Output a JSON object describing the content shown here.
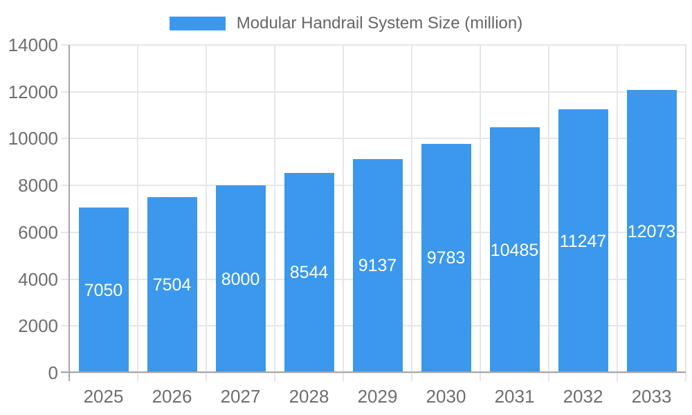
{
  "colors": {
    "background": "#FFFFFF",
    "bar": "#3B98EC",
    "bar_label": "#FFFFFF",
    "grid": "#E6E6E6",
    "axis_border": "#A6A6A6",
    "axis_text": "#6E6E6E",
    "legend_text": "#666666"
  },
  "legend": {
    "label": "Modular Handrail System Size (million)"
  },
  "chart_data": {
    "type": "bar",
    "title": "Modular Handrail System Size (million)",
    "categories": [
      "2025",
      "2026",
      "2027",
      "2028",
      "2029",
      "2030",
      "2031",
      "2032",
      "2033"
    ],
    "values": [
      7050,
      7504,
      8000,
      8544,
      9137,
      9783,
      10485,
      11247,
      12073
    ],
    "value_labels": [
      "7050",
      "7504",
      "8000",
      "8544",
      "9137",
      "9783",
      "10485",
      "11247",
      "12073"
    ],
    "xlabel": "",
    "ylabel": "",
    "ylim": [
      0,
      14000
    ],
    "ytick_step": 2000,
    "yticks": [
      "0",
      "2000",
      "4000",
      "6000",
      "8000",
      "10000",
      "12000",
      "14000"
    ],
    "grid": true,
    "legend_position": "top",
    "bar_value_labels_inside": true
  }
}
